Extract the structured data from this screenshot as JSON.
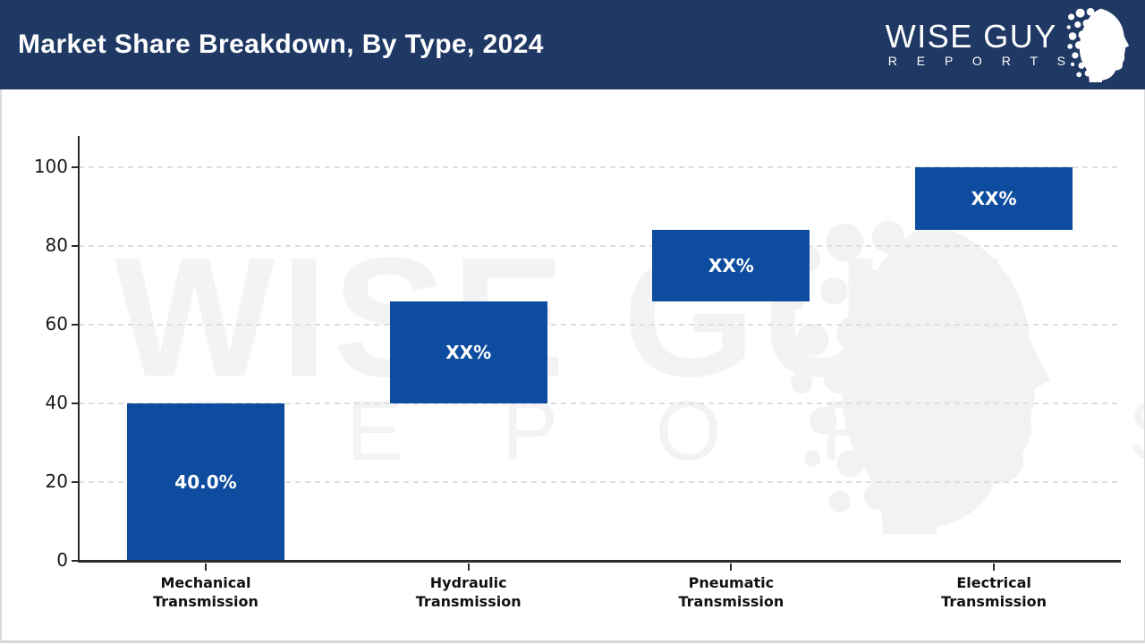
{
  "header": {
    "title": "Market Share Breakdown, By Type, 2024",
    "logo": {
      "wordmark": "WISE GUY",
      "subtext": "R E P O R T S",
      "icon": "head-profile-dots"
    }
  },
  "watermark": {
    "line1": "WISE GUY",
    "line2": "R E P O R T S",
    "icon": "head-profile-dots"
  },
  "chart_data": {
    "type": "bar",
    "subtype": "waterfall",
    "title": "Market Share Breakdown, By Type, 2024",
    "categories": [
      {
        "line1": "Mechanical",
        "line2": "Transmission"
      },
      {
        "line1": "Hydraulic",
        "line2": "Transmission"
      },
      {
        "line1": "Pneumatic",
        "line2": "Transmission"
      },
      {
        "line1": "Electrical",
        "line2": "Transmission"
      }
    ],
    "bars": [
      {
        "category": "Mechanical Transmission",
        "start": 0,
        "end": 40,
        "value": 40.0,
        "value_label": "40.0%"
      },
      {
        "category": "Hydraulic Transmission",
        "start": 40,
        "end": 65.8,
        "value": 25.8,
        "value_label": "XX%"
      },
      {
        "category": "Pneumatic Transmission",
        "start": 65.8,
        "end": 84.2,
        "value": 18.4,
        "value_label": "XX%"
      },
      {
        "category": "Electrical Transmission",
        "start": 84.2,
        "end": 100,
        "value": 15.8,
        "value_label": "XX%"
      }
    ],
    "yticks": [
      0,
      20,
      40,
      60,
      80,
      100
    ],
    "ylim": [
      0,
      100
    ],
    "xlabel": "",
    "ylabel": "",
    "grid": "horizontal-dashed",
    "legend": "none",
    "bar_color": "#0d4c9e",
    "bar_label_color": "#ffffff"
  },
  "colors": {
    "header_bg": "#1f3864",
    "bar_fill": "#0d4c9e",
    "gridline": "#dedede",
    "axis": "#2b2b2b",
    "watermark": "#f3f3f6",
    "page_bg": "#ffffff",
    "border": "#d9d9d9"
  }
}
